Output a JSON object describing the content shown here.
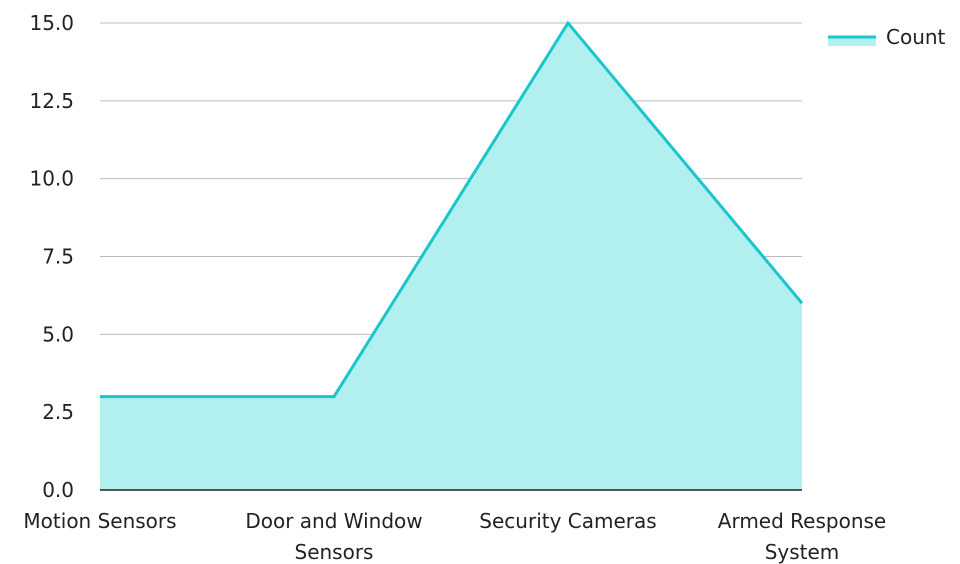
{
  "chart_data": {
    "type": "area",
    "categories": [
      [
        "Motion Sensors"
      ],
      [
        "Door and Window",
        "Sensors"
      ],
      [
        "Security Cameras"
      ],
      [
        "Armed Response",
        "System"
      ]
    ],
    "series": [
      {
        "name": "Count",
        "values": [
          3,
          3,
          15,
          6
        ]
      }
    ],
    "ylim": [
      0,
      15
    ],
    "yticks": [
      "0.0",
      "2.5",
      "5.0",
      "7.5",
      "10.0",
      "12.5",
      "15.0"
    ],
    "grid": true,
    "legend": "top-right",
    "colors": {
      "line": "#19c6c9",
      "fill": "#b2efef",
      "grid": "#bdbdbd",
      "axis": "#222222"
    }
  }
}
